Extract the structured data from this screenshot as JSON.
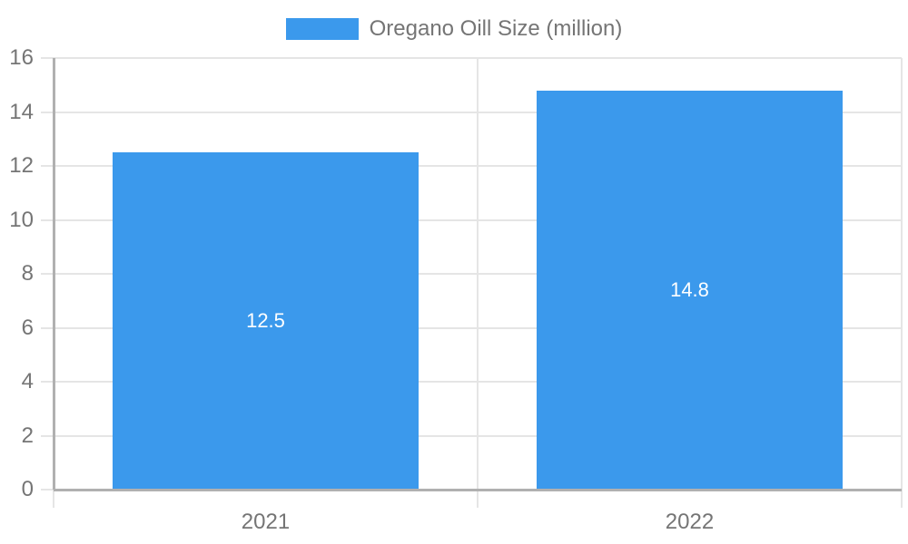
{
  "chart_data": {
    "type": "bar",
    "title": "",
    "legend": {
      "label": "Oregano Oill Size (million)",
      "position": "top"
    },
    "categories": [
      "2021",
      "2022"
    ],
    "values": [
      12.5,
      14.8
    ],
    "value_labels": [
      "12.5",
      "14.8"
    ],
    "yticks": [
      0,
      2,
      4,
      6,
      8,
      10,
      12,
      14,
      16
    ],
    "ylim": [
      0,
      16
    ],
    "grid": true,
    "colors": {
      "bar": "#3B99EC",
      "grid": "#E5E5E5",
      "axis": "#B0B0B0",
      "tick_text": "#757575",
      "legend_text": "#757575",
      "value_text": "#FFFFFF",
      "background": "#FFFFFF"
    }
  }
}
